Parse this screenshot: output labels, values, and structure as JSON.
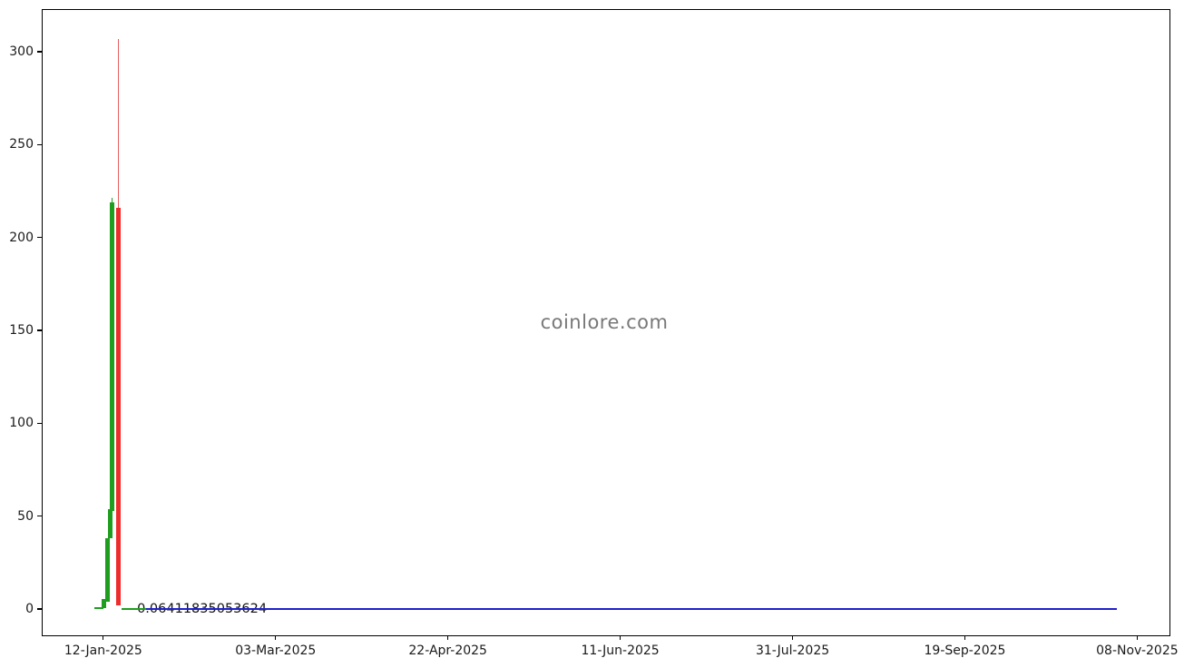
{
  "watermark": {
    "text": "coinlore.com",
    "color": "#787878"
  },
  "annotation": {
    "label": "0.06411835053624",
    "day": 9.8,
    "value": 0.064
  },
  "colors": {
    "up": "#1f9d1f",
    "down": "#ee2c2c",
    "down_wick": "#e85f5f",
    "line": "#2121cc",
    "axis": "#000000",
    "background": "#ffffff"
  },
  "chart_data": {
    "type": "candlestick",
    "title": "",
    "xlabel": "",
    "ylabel": "",
    "grid": false,
    "legend": null,
    "x_axis": {
      "tick_labels": [
        "12-Jan-2025",
        "03-Mar-2025",
        "22-Apr-2025",
        "11-Jun-2025",
        "31-Jul-2025",
        "19-Sep-2025",
        "08-Nov-2025"
      ],
      "tick_days": [
        0,
        50,
        100,
        150,
        200,
        250,
        300
      ],
      "range_days": [
        -17.6,
        309.9
      ]
    },
    "y_axis": {
      "tick_labels": [
        "0",
        "50",
        "100",
        "150",
        "200",
        "250",
        "300"
      ],
      "tick_values": [
        0,
        50,
        100,
        150,
        200,
        250,
        300
      ],
      "range": [
        -15.1,
        322.5
      ]
    },
    "candles": [
      {
        "date": "12-Jan-2025",
        "day": 0.2,
        "open": 0.3,
        "high": 5.5,
        "low": 0.3,
        "close": 5.5
      },
      {
        "date": "13-Jan-2025",
        "day": 1.2,
        "open": 4,
        "high": 38,
        "low": 4,
        "close": 38
      },
      {
        "date": "14-Jan-2025",
        "day": 1.95,
        "open": 38,
        "high": 54,
        "low": 38,
        "close": 54
      },
      {
        "date": "15-Jan-2025",
        "day": 2.6,
        "open": 53,
        "high": 221.5,
        "low": 53,
        "close": 219
      },
      {
        "date": "16-Jan-2025",
        "day": 4.3,
        "open": 216,
        "high": 307,
        "low": 2,
        "close": 2
      }
    ],
    "line_segments": [
      {
        "name": "pre-spike-flat",
        "color_key": "up",
        "from_day": -2.6,
        "to_day": 0.1,
        "value": 0.5
      },
      {
        "name": "post-spike-flat",
        "color_key": "up",
        "from_day": 5.4,
        "to_day": 12.5,
        "value": 0.064
      },
      {
        "name": "price-line",
        "color_key": "line",
        "from_day": 12.5,
        "to_day": 294,
        "value": 0.064
      }
    ],
    "last_price": 0.06411835053624
  }
}
